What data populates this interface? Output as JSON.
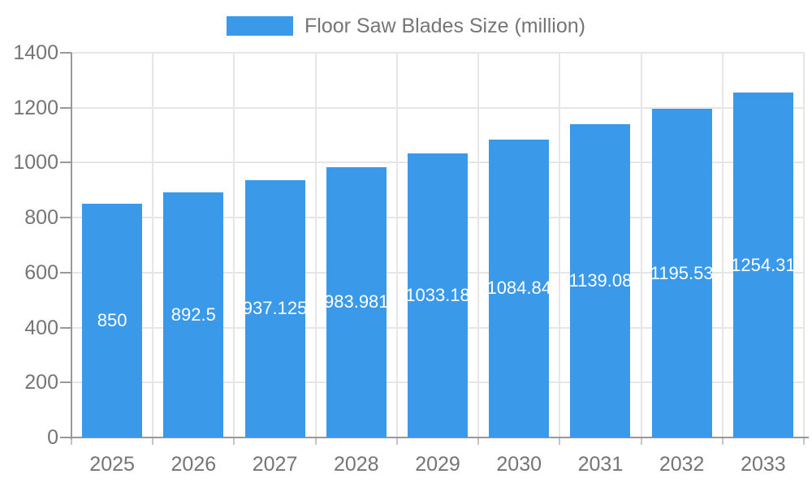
{
  "legend": {
    "label": "Floor Saw Blades Size (million)"
  },
  "colors": {
    "bar": "#3b99ea",
    "axis_label": "#757575",
    "value_label": "#ffffff",
    "grid_line": "#e6e6e6",
    "axis_line": "#999999",
    "x_tick": "#c4c4c4",
    "background": "#ffffff"
  },
  "chart_data": {
    "type": "bar",
    "title": "Floor Saw Blades Size (million)",
    "categories": [
      "2025",
      "2026",
      "2027",
      "2028",
      "2029",
      "2030",
      "2031",
      "2032",
      "2033"
    ],
    "values": [
      850,
      892.5,
      937.125,
      983.981,
      1033.18,
      1084.84,
      1139.08,
      1195.53,
      1254.31
    ],
    "value_labels": [
      "850",
      "892.5",
      "937.125",
      "983.981",
      "1033.18",
      "1084.84",
      "1139.08",
      "1195.53",
      "1254.31"
    ],
    "series_name": "Floor Saw Blades Size (million)",
    "xlabel": "",
    "ylabel": "",
    "ylim": [
      0,
      1400
    ],
    "yticks": [
      0,
      200,
      400,
      600,
      800,
      1000,
      1200,
      1400
    ],
    "grid": true,
    "legend_position": "top-center",
    "label_position": "inside-center",
    "bar_color": "#3b99ea"
  }
}
